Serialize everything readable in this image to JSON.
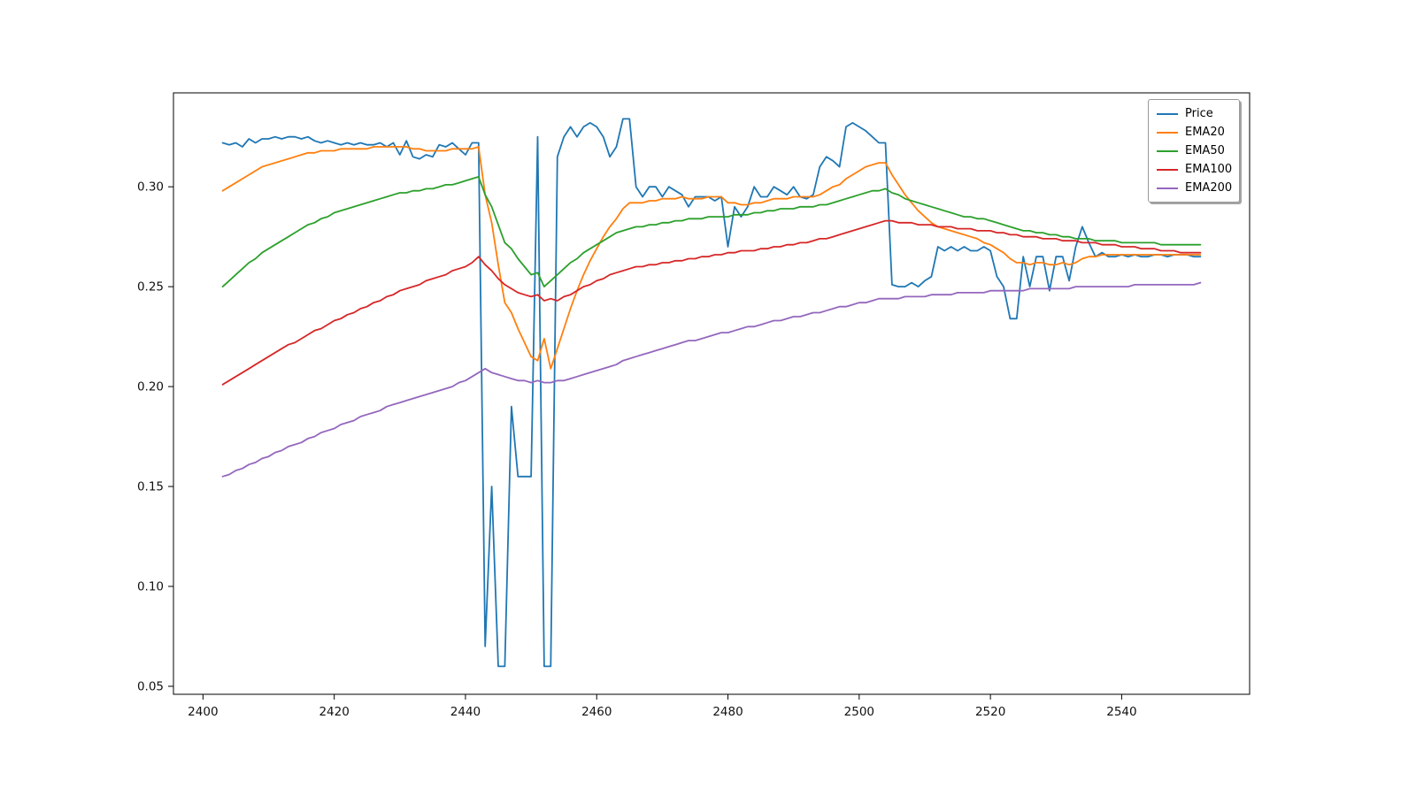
{
  "chart_data": {
    "type": "line",
    "title": "",
    "xlabel": "",
    "ylabel": "",
    "grid": false,
    "legend_position": "upper right",
    "xlim": [
      2395.5,
      2559.5
    ],
    "ylim": [
      0.046,
      0.347
    ],
    "xticks": [
      2400,
      2420,
      2440,
      2460,
      2480,
      2500,
      2520,
      2540
    ],
    "xtick_labels": [
      "2400",
      "2420",
      "2440",
      "2460",
      "2480",
      "2500",
      "2520",
      "2540"
    ],
    "yticks": [
      0.05,
      0.1,
      0.15,
      0.2,
      0.25,
      0.3
    ],
    "ytick_labels": [
      "0.05",
      "0.10",
      "0.15",
      "0.20",
      "0.25",
      "0.30"
    ],
    "x": [
      2403,
      2404,
      2405,
      2406,
      2407,
      2408,
      2409,
      2410,
      2411,
      2412,
      2413,
      2414,
      2415,
      2416,
      2417,
      2418,
      2419,
      2420,
      2421,
      2422,
      2423,
      2424,
      2425,
      2426,
      2427,
      2428,
      2429,
      2430,
      2431,
      2432,
      2433,
      2434,
      2435,
      2436,
      2437,
      2438,
      2439,
      2440,
      2441,
      2442,
      2443,
      2444,
      2445,
      2446,
      2447,
      2448,
      2449,
      2450,
      2451,
      2452,
      2453,
      2454,
      2455,
      2456,
      2457,
      2458,
      2459,
      2460,
      2461,
      2462,
      2463,
      2464,
      2465,
      2466,
      2467,
      2468,
      2469,
      2470,
      2471,
      2472,
      2473,
      2474,
      2475,
      2476,
      2477,
      2478,
      2479,
      2480,
      2481,
      2482,
      2483,
      2484,
      2485,
      2486,
      2487,
      2488,
      2489,
      2490,
      2491,
      2492,
      2493,
      2494,
      2495,
      2496,
      2497,
      2498,
      2499,
      2500,
      2501,
      2502,
      2503,
      2504,
      2505,
      2506,
      2507,
      2508,
      2509,
      2510,
      2511,
      2512,
      2513,
      2514,
      2515,
      2516,
      2517,
      2518,
      2519,
      2520,
      2521,
      2522,
      2523,
      2524,
      2525,
      2526,
      2527,
      2528,
      2529,
      2530,
      2531,
      2532,
      2533,
      2534,
      2535,
      2536,
      2537,
      2538,
      2539,
      2540,
      2541,
      2542,
      2543,
      2544,
      2545,
      2546,
      2547,
      2548,
      2549,
      2550,
      2551,
      2552
    ],
    "series": [
      {
        "name": "Price",
        "color": "#1f77b4",
        "values": [
          0.322,
          0.321,
          0.322,
          0.32,
          0.324,
          0.322,
          0.324,
          0.324,
          0.325,
          0.324,
          0.325,
          0.325,
          0.324,
          0.325,
          0.323,
          0.322,
          0.323,
          0.322,
          0.321,
          0.322,
          0.321,
          0.322,
          0.321,
          0.321,
          0.322,
          0.32,
          0.322,
          0.316,
          0.323,
          0.315,
          0.314,
          0.316,
          0.315,
          0.321,
          0.32,
          0.322,
          0.319,
          0.316,
          0.322,
          0.322,
          0.07,
          0.15,
          0.06,
          0.06,
          0.19,
          0.155,
          0.155,
          0.155,
          0.325,
          0.06,
          0.06,
          0.315,
          0.325,
          0.33,
          0.325,
          0.33,
          0.332,
          0.33,
          0.325,
          0.315,
          0.32,
          0.334,
          0.334,
          0.3,
          0.295,
          0.3,
          0.3,
          0.295,
          0.3,
          0.298,
          0.296,
          0.29,
          0.295,
          0.295,
          0.295,
          0.293,
          0.295,
          0.27,
          0.29,
          0.285,
          0.29,
          0.3,
          0.295,
          0.295,
          0.3,
          0.298,
          0.296,
          0.3,
          0.295,
          0.294,
          0.296,
          0.31,
          0.315,
          0.313,
          0.31,
          0.33,
          0.332,
          0.33,
          0.328,
          0.325,
          0.322,
          0.322,
          0.251,
          0.25,
          0.25,
          0.252,
          0.25,
          0.253,
          0.255,
          0.27,
          0.268,
          0.27,
          0.268,
          0.27,
          0.268,
          0.268,
          0.27,
          0.268,
          0.255,
          0.25,
          0.234,
          0.234,
          0.265,
          0.25,
          0.265,
          0.265,
          0.248,
          0.265,
          0.265,
          0.253,
          0.27,
          0.28,
          0.272,
          0.265,
          0.267,
          0.265,
          0.265,
          0.266,
          0.265,
          0.266,
          0.265,
          0.265,
          0.266,
          0.266,
          0.265,
          0.266,
          0.266,
          0.266,
          0.265,
          0.265
        ]
      },
      {
        "name": "EMA20",
        "color": "#ff7f0e",
        "values": [
          0.298,
          0.3,
          0.302,
          0.304,
          0.306,
          0.308,
          0.31,
          0.311,
          0.312,
          0.313,
          0.314,
          0.315,
          0.316,
          0.317,
          0.317,
          0.318,
          0.318,
          0.318,
          0.319,
          0.319,
          0.319,
          0.319,
          0.319,
          0.32,
          0.32,
          0.32,
          0.32,
          0.32,
          0.32,
          0.319,
          0.319,
          0.318,
          0.318,
          0.318,
          0.318,
          0.319,
          0.319,
          0.319,
          0.319,
          0.32,
          0.296,
          0.282,
          0.261,
          0.242,
          0.237,
          0.229,
          0.222,
          0.215,
          0.213,
          0.224,
          0.209,
          0.219,
          0.229,
          0.239,
          0.248,
          0.256,
          0.263,
          0.269,
          0.275,
          0.28,
          0.284,
          0.289,
          0.292,
          0.292,
          0.292,
          0.293,
          0.293,
          0.294,
          0.294,
          0.294,
          0.295,
          0.294,
          0.294,
          0.294,
          0.295,
          0.295,
          0.295,
          0.292,
          0.292,
          0.291,
          0.291,
          0.292,
          0.292,
          0.293,
          0.294,
          0.294,
          0.294,
          0.295,
          0.295,
          0.295,
          0.295,
          0.296,
          0.298,
          0.3,
          0.301,
          0.304,
          0.306,
          0.308,
          0.31,
          0.311,
          0.312,
          0.312,
          0.306,
          0.301,
          0.296,
          0.292,
          0.288,
          0.285,
          0.282,
          0.28,
          0.279,
          0.278,
          0.277,
          0.276,
          0.275,
          0.274,
          0.272,
          0.271,
          0.269,
          0.267,
          0.264,
          0.262,
          0.262,
          0.261,
          0.262,
          0.262,
          0.261,
          0.261,
          0.262,
          0.261,
          0.262,
          0.264,
          0.265,
          0.265,
          0.266,
          0.266,
          0.266,
          0.266,
          0.266,
          0.266,
          0.266,
          0.266,
          0.266,
          0.266,
          0.266,
          0.266,
          0.266,
          0.266,
          0.266,
          0.266
        ]
      },
      {
        "name": "EMA50",
        "color": "#2ca02c",
        "values": [
          0.25,
          0.253,
          0.256,
          0.259,
          0.262,
          0.264,
          0.267,
          0.269,
          0.271,
          0.273,
          0.275,
          0.277,
          0.279,
          0.281,
          0.282,
          0.284,
          0.285,
          0.287,
          0.288,
          0.289,
          0.29,
          0.291,
          0.292,
          0.293,
          0.294,
          0.295,
          0.296,
          0.297,
          0.297,
          0.298,
          0.298,
          0.299,
          0.299,
          0.3,
          0.301,
          0.301,
          0.302,
          0.303,
          0.304,
          0.305,
          0.296,
          0.29,
          0.281,
          0.272,
          0.269,
          0.264,
          0.26,
          0.256,
          0.257,
          0.25,
          0.253,
          0.256,
          0.259,
          0.262,
          0.264,
          0.267,
          0.269,
          0.271,
          0.273,
          0.275,
          0.277,
          0.278,
          0.279,
          0.28,
          0.28,
          0.281,
          0.281,
          0.282,
          0.282,
          0.283,
          0.283,
          0.284,
          0.284,
          0.284,
          0.285,
          0.285,
          0.285,
          0.285,
          0.286,
          0.286,
          0.286,
          0.287,
          0.287,
          0.288,
          0.288,
          0.289,
          0.289,
          0.289,
          0.29,
          0.29,
          0.29,
          0.291,
          0.291,
          0.292,
          0.293,
          0.294,
          0.295,
          0.296,
          0.297,
          0.298,
          0.298,
          0.299,
          0.297,
          0.296,
          0.294,
          0.293,
          0.292,
          0.291,
          0.29,
          0.289,
          0.288,
          0.287,
          0.286,
          0.285,
          0.285,
          0.284,
          0.284,
          0.283,
          0.282,
          0.281,
          0.28,
          0.279,
          0.278,
          0.278,
          0.277,
          0.277,
          0.276,
          0.276,
          0.275,
          0.275,
          0.274,
          0.274,
          0.274,
          0.273,
          0.273,
          0.273,
          0.273,
          0.272,
          0.272,
          0.272,
          0.272,
          0.272,
          0.272,
          0.271,
          0.271,
          0.271,
          0.271,
          0.271,
          0.271,
          0.271
        ]
      },
      {
        "name": "EMA100",
        "color": "#d62728",
        "values": [
          0.201,
          0.203,
          0.205,
          0.207,
          0.209,
          0.211,
          0.213,
          0.215,
          0.217,
          0.219,
          0.221,
          0.222,
          0.224,
          0.226,
          0.228,
          0.229,
          0.231,
          0.233,
          0.234,
          0.236,
          0.237,
          0.239,
          0.24,
          0.242,
          0.243,
          0.245,
          0.246,
          0.248,
          0.249,
          0.25,
          0.251,
          0.253,
          0.254,
          0.255,
          0.256,
          0.258,
          0.259,
          0.26,
          0.262,
          0.265,
          0.261,
          0.258,
          0.254,
          0.251,
          0.249,
          0.247,
          0.246,
          0.245,
          0.246,
          0.243,
          0.244,
          0.243,
          0.245,
          0.246,
          0.248,
          0.25,
          0.251,
          0.253,
          0.254,
          0.256,
          0.257,
          0.258,
          0.259,
          0.26,
          0.26,
          0.261,
          0.261,
          0.262,
          0.262,
          0.263,
          0.263,
          0.264,
          0.264,
          0.265,
          0.265,
          0.266,
          0.266,
          0.267,
          0.267,
          0.268,
          0.268,
          0.268,
          0.269,
          0.269,
          0.27,
          0.27,
          0.271,
          0.271,
          0.272,
          0.272,
          0.273,
          0.274,
          0.274,
          0.275,
          0.276,
          0.277,
          0.278,
          0.279,
          0.28,
          0.281,
          0.282,
          0.283,
          0.283,
          0.282,
          0.282,
          0.282,
          0.281,
          0.281,
          0.281,
          0.28,
          0.28,
          0.28,
          0.279,
          0.279,
          0.279,
          0.278,
          0.278,
          0.278,
          0.277,
          0.277,
          0.276,
          0.276,
          0.275,
          0.275,
          0.275,
          0.274,
          0.274,
          0.274,
          0.273,
          0.273,
          0.273,
          0.272,
          0.272,
          0.272,
          0.271,
          0.271,
          0.271,
          0.27,
          0.27,
          0.27,
          0.269,
          0.269,
          0.269,
          0.268,
          0.268,
          0.268,
          0.267,
          0.267,
          0.267,
          0.267
        ]
      },
      {
        "name": "EMA200",
        "color": "#9467bd",
        "values": [
          0.155,
          0.156,
          0.158,
          0.159,
          0.161,
          0.162,
          0.164,
          0.165,
          0.167,
          0.168,
          0.17,
          0.171,
          0.172,
          0.174,
          0.175,
          0.177,
          0.178,
          0.179,
          0.181,
          0.182,
          0.183,
          0.185,
          0.186,
          0.187,
          0.188,
          0.19,
          0.191,
          0.192,
          0.193,
          0.194,
          0.195,
          0.196,
          0.197,
          0.198,
          0.199,
          0.2,
          0.202,
          0.203,
          0.205,
          0.207,
          0.209,
          0.207,
          0.206,
          0.205,
          0.204,
          0.203,
          0.203,
          0.202,
          0.203,
          0.202,
          0.202,
          0.203,
          0.203,
          0.204,
          0.205,
          0.206,
          0.207,
          0.208,
          0.209,
          0.21,
          0.211,
          0.213,
          0.214,
          0.215,
          0.216,
          0.217,
          0.218,
          0.219,
          0.22,
          0.221,
          0.222,
          0.223,
          0.223,
          0.224,
          0.225,
          0.226,
          0.227,
          0.227,
          0.228,
          0.229,
          0.23,
          0.23,
          0.231,
          0.232,
          0.233,
          0.233,
          0.234,
          0.235,
          0.235,
          0.236,
          0.237,
          0.237,
          0.238,
          0.239,
          0.24,
          0.24,
          0.241,
          0.242,
          0.242,
          0.243,
          0.244,
          0.244,
          0.244,
          0.244,
          0.245,
          0.245,
          0.245,
          0.245,
          0.246,
          0.246,
          0.246,
          0.246,
          0.247,
          0.247,
          0.247,
          0.247,
          0.247,
          0.248,
          0.248,
          0.248,
          0.248,
          0.248,
          0.248,
          0.249,
          0.249,
          0.249,
          0.249,
          0.249,
          0.249,
          0.249,
          0.25,
          0.25,
          0.25,
          0.25,
          0.25,
          0.25,
          0.25,
          0.25,
          0.25,
          0.251,
          0.251,
          0.251,
          0.251,
          0.251,
          0.251,
          0.251,
          0.251,
          0.251,
          0.251,
          0.252
        ]
      }
    ]
  }
}
